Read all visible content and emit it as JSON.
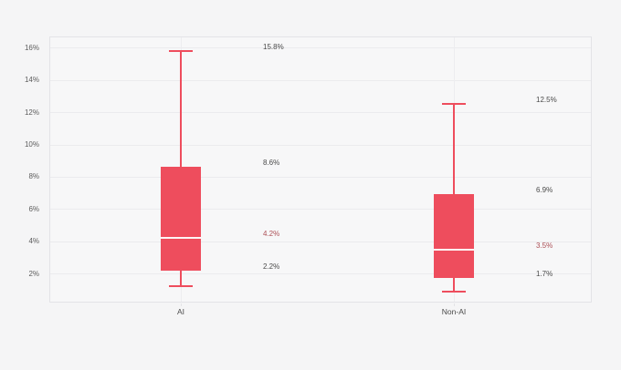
{
  "chart_data": {
    "type": "boxplot",
    "title": "",
    "categories": [
      "AI",
      "Non-AI"
    ],
    "series": [
      {
        "category": "AI",
        "min": 1.2,
        "q1": 2.2,
        "median": 4.2,
        "q3": 8.6,
        "max": 15.8,
        "point_labels": {
          "max": "15.8%",
          "q3": "8.6%",
          "median": "4.2%",
          "q1": "2.2%"
        }
      },
      {
        "category": "Non-AI",
        "min": 0.9,
        "q1": 1.7,
        "median": 3.5,
        "q3": 6.9,
        "max": 12.5,
        "point_labels": {
          "max": "12.5%",
          "q3": "6.9%",
          "median": "3.5%",
          "q1": "1.7%"
        }
      }
    ],
    "y_axis": {
      "min": 0.2,
      "max": 16.7,
      "ticks": [
        {
          "value": 2,
          "label": "2%"
        },
        {
          "value": 4,
          "label": "4%"
        },
        {
          "value": 6,
          "label": "6%"
        },
        {
          "value": 8,
          "label": "8%"
        },
        {
          "value": 10,
          "label": "10%"
        },
        {
          "value": 12,
          "label": "12%"
        },
        {
          "value": 14,
          "label": "14%"
        },
        {
          "value": 16,
          "label": "16%"
        }
      ]
    },
    "x_axis": {
      "labels": [
        "AI",
        "Non-AI"
      ]
    },
    "grid": "horizontal gridlines per 2% + faint vertical line per category",
    "legend": "none"
  },
  "colors": {
    "background": "#f5f5f6",
    "plot_background": "#f7f7f8",
    "plot_border": "#e3e3e7",
    "gridline": "#ebebee",
    "category_gridline": "#ededf0",
    "box_fill": "#ee4d5d",
    "whisker": "#ee4d5d",
    "median_line": "#fdf6f6",
    "annotation_text": "#4a4a4a",
    "annotation_median_text": "#ac4f55",
    "axis_text": "#5b5b5b"
  }
}
